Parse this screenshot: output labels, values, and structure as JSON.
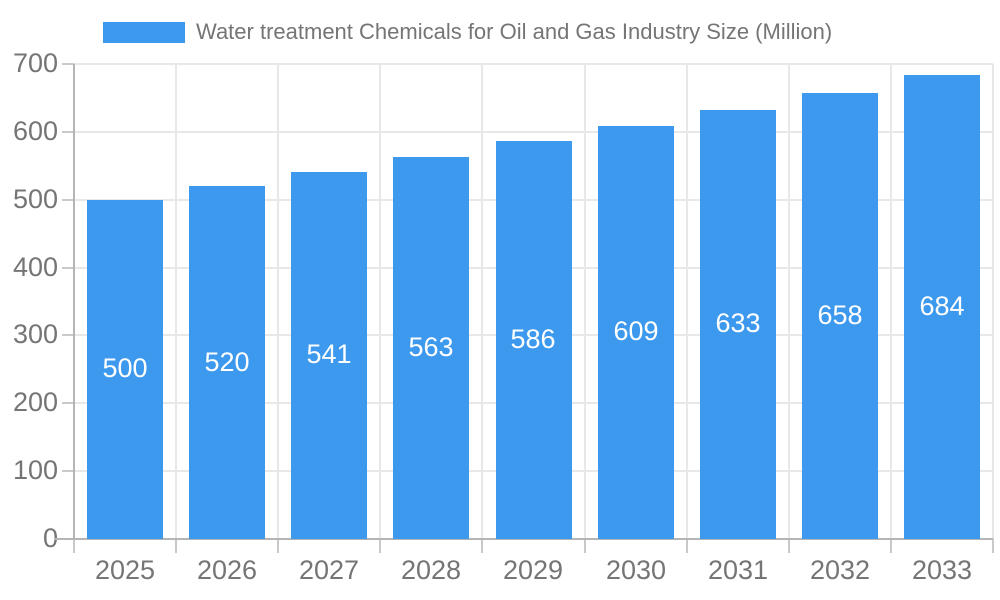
{
  "legend": {
    "label": "Water treatment Chemicals for Oil and Gas Industry Size (Million)"
  },
  "chart_data": {
    "type": "bar",
    "title": "Water treatment Chemicals for Oil and Gas Industry Size (Million)",
    "categories": [
      "2025",
      "2026",
      "2027",
      "2028",
      "2029",
      "2030",
      "2031",
      "2032",
      "2033"
    ],
    "values": [
      500,
      520,
      541,
      563,
      586,
      609,
      633,
      658,
      684
    ],
    "series": [
      {
        "name": "Water treatment Chemicals for Oil and Gas Industry Size (Million)",
        "values": [
          500,
          520,
          541,
          563,
          586,
          609,
          633,
          658,
          684
        ]
      }
    ],
    "xlabel": "",
    "ylabel": "",
    "ylim": [
      0,
      700
    ],
    "yticks": [
      0,
      100,
      200,
      300,
      400,
      500,
      600,
      700
    ],
    "grid": true,
    "legend_position": "top",
    "bar_value_labels_shown": true
  },
  "colors": {
    "bar": "#3C99EE",
    "text": "#757575",
    "grid": "#e8e8e8",
    "axis": "#b5b5b5",
    "tick": "#c9c9c9",
    "bar_label": "#ffffff",
    "background": "#ffffff"
  }
}
